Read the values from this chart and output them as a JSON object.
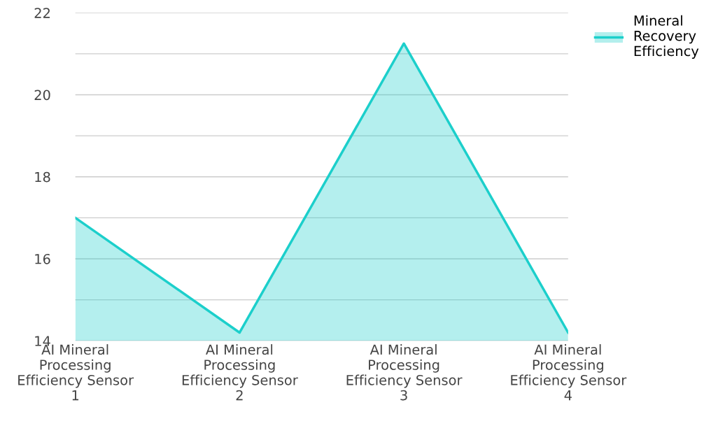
{
  "chart_data": {
    "type": "area",
    "categories": [
      "AI Mineral Processing Efficiency Sensor 1",
      "AI Mineral Processing Efficiency Sensor 2",
      "AI Mineral Processing Efficiency Sensor 3",
      "AI Mineral Processing Efficiency Sensor 4"
    ],
    "series": [
      {
        "name": "Mineral Recovery Efficiency",
        "color": "#1ccfcb",
        "values": [
          17,
          14.2,
          21.25,
          14.2
        ]
      }
    ],
    "ylim": [
      14,
      22
    ],
    "yticks": [
      14,
      {
        "value": 15,
        "label": null
      },
      16,
      {
        "value": 17,
        "label": null
      },
      18,
      {
        "value": 19,
        "label": null
      },
      20,
      {
        "value": 21,
        "label": null
      },
      22
    ],
    "grid": "y",
    "legend": "top right"
  }
}
